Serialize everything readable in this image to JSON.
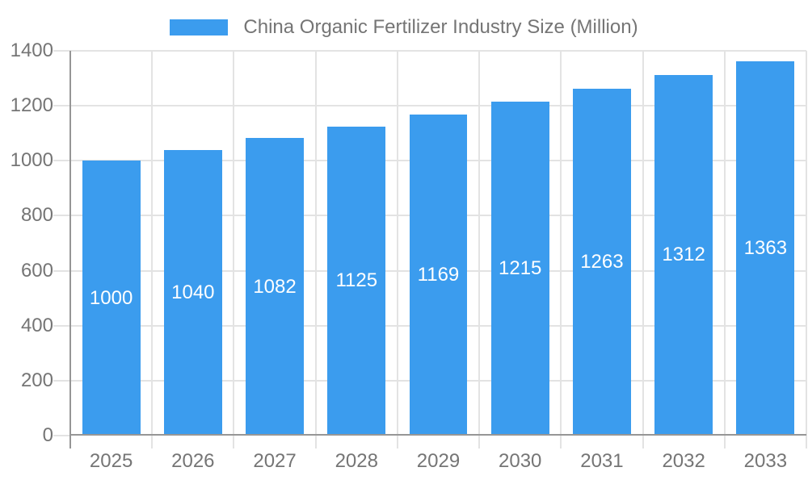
{
  "legend": {
    "series_label": "China Organic Fertilizer Industry Size (Million)"
  },
  "chart_data": {
    "type": "bar",
    "title": "China Organic Fertilizer Industry Size (Million)",
    "categories": [
      "2025",
      "2026",
      "2027",
      "2028",
      "2029",
      "2030",
      "2031",
      "2032",
      "2033"
    ],
    "values": [
      1000,
      1040,
      1082,
      1125,
      1169,
      1215,
      1263,
      1312,
      1363
    ],
    "series": [
      {
        "name": "China Organic Fertilizer Industry Size (Million)",
        "values": [
          1000,
          1040,
          1082,
          1125,
          1169,
          1215,
          1263,
          1312,
          1363
        ]
      }
    ],
    "xlabel": "",
    "ylabel": "",
    "ylim": [
      0,
      1400
    ],
    "yticks": [
      0,
      200,
      400,
      600,
      800,
      1000,
      1200,
      1400
    ],
    "grid": true,
    "legend_position": "top-center",
    "value_labels": "inside-center",
    "colors": {
      "bar": "#3B9CEE",
      "bar_label": "#FFFFFF",
      "axis_text": "#757575",
      "axis_line": "#969696",
      "gridline": "#E3E3E3",
      "background": "#FFFFFF"
    }
  }
}
